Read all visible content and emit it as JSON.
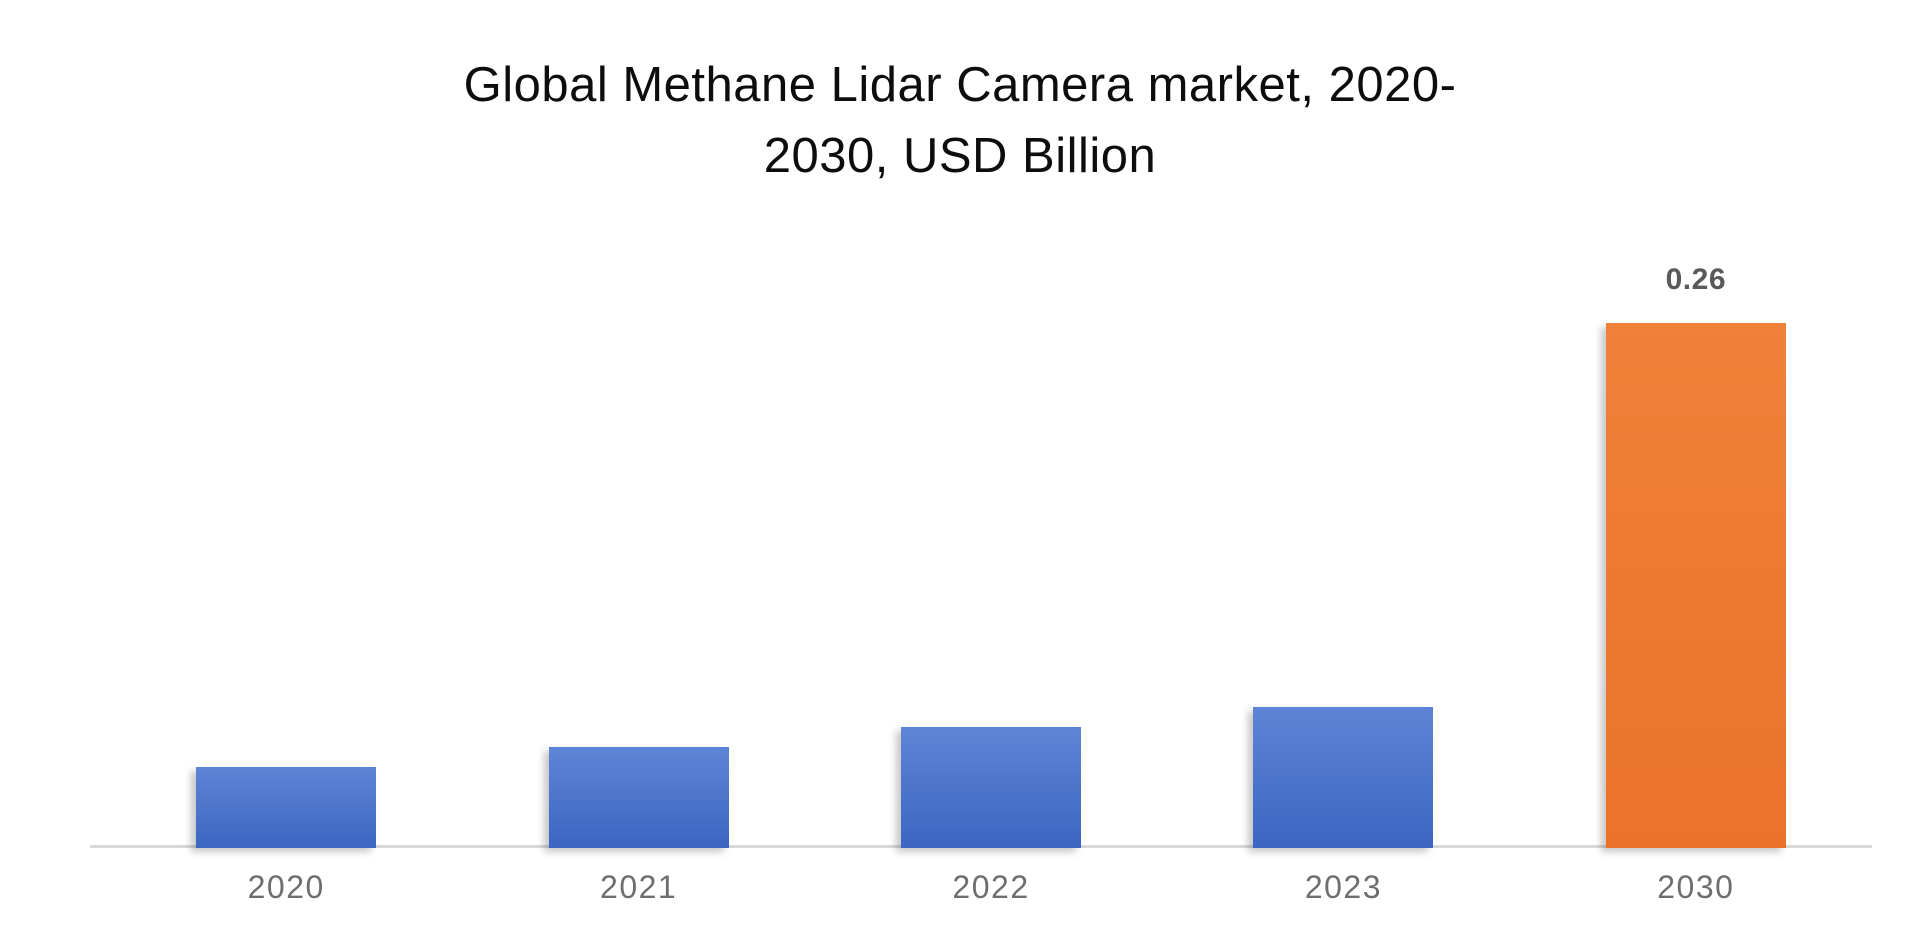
{
  "chart_data": {
    "type": "bar",
    "title": "Global Methane Lidar Camera market, 2020-2030, USD Billion",
    "title_lines": [
      "Global Methane Lidar Camera market, 2020-",
      "2030, USD Billion"
    ],
    "categories": [
      "2020",
      "2021",
      "2022",
      "2023",
      "2030"
    ],
    "values": [
      0.04,
      0.05,
      0.06,
      0.07,
      0.26
    ],
    "data_labels": [
      "",
      "",
      "",
      "",
      "0.26"
    ],
    "unit": "USD Billion",
    "xlabel": "",
    "ylabel": "",
    "ylim": [
      0,
      0.28
    ],
    "grid": false,
    "legend": false,
    "y_axis_visible": false,
    "bar_colors": [
      "#4472C4",
      "#4472C4",
      "#4472C4",
      "#4472C4",
      "#ED7D31"
    ],
    "bar_gradients": [
      [
        "#5e85d5",
        "#3b66c1"
      ],
      [
        "#5e85d5",
        "#3b66c1"
      ],
      [
        "#5e85d5",
        "#3b66c1"
      ],
      [
        "#5e85d5",
        "#3b66c1"
      ],
      [
        "#f08138",
        "#e97329"
      ]
    ],
    "colors": {
      "title": "#0d0d0d",
      "axis_line": "#d9d9d9",
      "tick_label": "#6e6e6e",
      "data_label": "#595959",
      "background": "#ffffff"
    }
  }
}
